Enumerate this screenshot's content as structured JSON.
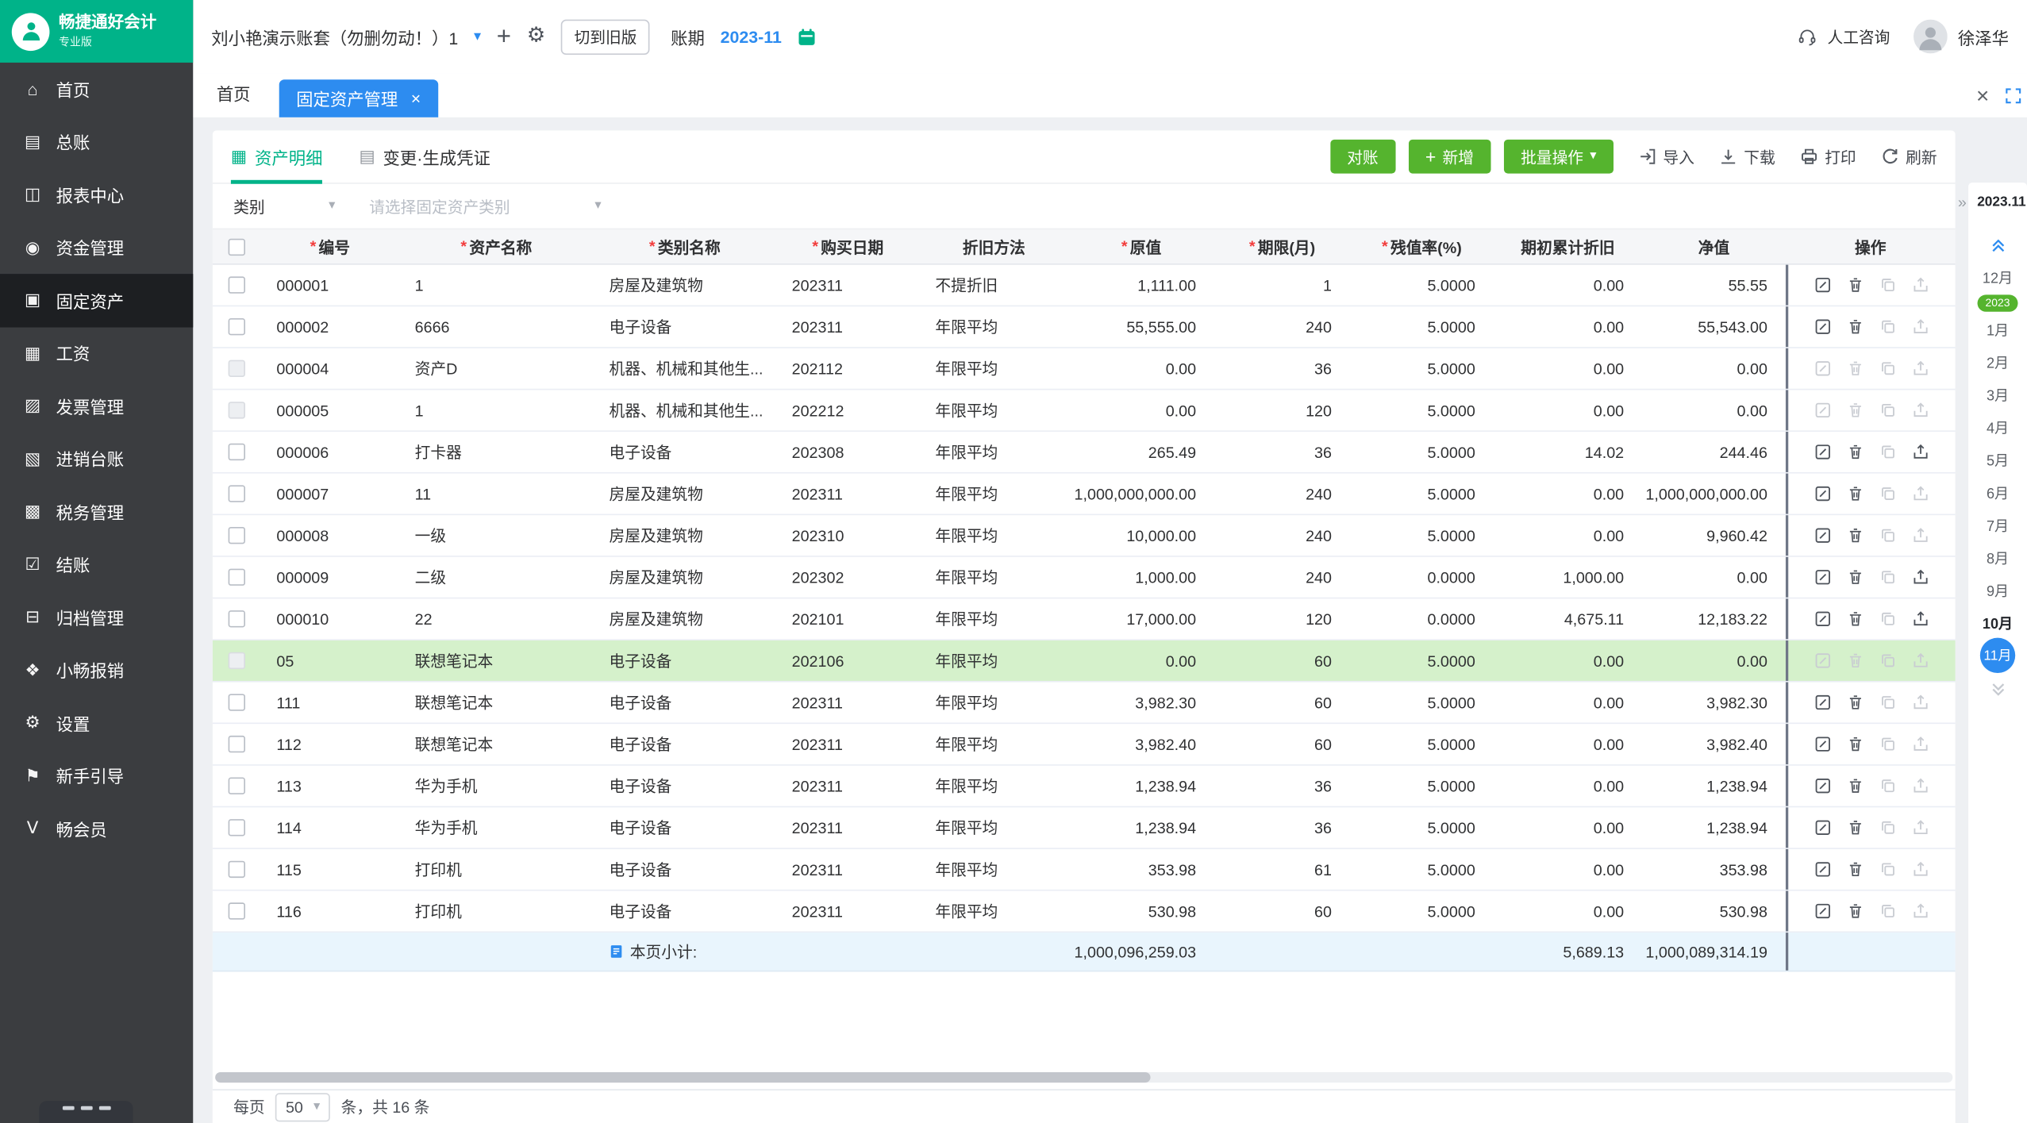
{
  "colors": {
    "brand": "#00b389",
    "action": "#55b42e",
    "blue": "#2d8cf0",
    "red": "#f23c3c",
    "sidebar_bg": "#3b3d40",
    "selected_row": "#d5f1cb",
    "summary_row": "#e9f5fd"
  },
  "sidebar": {
    "logo_title": "畅捷通好会计",
    "logo_subtitle": "专业版",
    "items": [
      {
        "key": "home",
        "label": "首页",
        "icon": "home-icon",
        "active": false
      },
      {
        "key": "general-ledger",
        "label": "总账",
        "icon": "ledger-icon",
        "active": false
      },
      {
        "key": "report-center",
        "label": "报表中心",
        "icon": "report-icon",
        "active": false
      },
      {
        "key": "fund-management",
        "label": "资金管理",
        "icon": "fund-icon",
        "active": false
      },
      {
        "key": "fixed-assets",
        "label": "固定资产",
        "icon": "fixed-asset-icon",
        "active": true
      },
      {
        "key": "salary",
        "label": "工资",
        "icon": "salary-icon",
        "active": false
      },
      {
        "key": "invoice-management",
        "label": "发票管理",
        "icon": "invoice-icon",
        "active": false
      },
      {
        "key": "purchase-sales-ledger",
        "label": "进销台账",
        "icon": "purchase-sales-icon",
        "active": false
      },
      {
        "key": "tax-management",
        "label": "税务管理",
        "icon": "tax-icon",
        "active": false
      },
      {
        "key": "closing",
        "label": "结账",
        "icon": "closing-icon",
        "active": false
      },
      {
        "key": "archive-management",
        "label": "归档管理",
        "icon": "archive-icon",
        "active": false
      },
      {
        "key": "reimbursement",
        "label": "小畅报销",
        "icon": "reimburse-icon",
        "active": false
      },
      {
        "key": "settings",
        "label": "设置",
        "icon": "settings-icon",
        "active": false
      },
      {
        "key": "beginner-guide",
        "label": "新手引导",
        "icon": "guide-icon",
        "active": false
      },
      {
        "key": "membership",
        "label": "畅会员",
        "icon": "member-icon",
        "active": false
      }
    ]
  },
  "topbar": {
    "account_name": "刘小艳演示账套（勿删勿动！）1",
    "switch_old_label": "切到旧版",
    "period_label": "账期",
    "period_value": "2023-11",
    "consult_label": "人工咨询",
    "username": "徐泽华"
  },
  "tabbar": {
    "tabs": [
      {
        "label": "首页",
        "active": false,
        "closable": false
      },
      {
        "label": "固定资产管理",
        "active": true,
        "closable": true
      }
    ]
  },
  "toolbar": {
    "view_tabs": [
      {
        "label": "资产明细",
        "active": true
      },
      {
        "label": "变更·生成凭证",
        "active": false
      }
    ],
    "reconcile_label": "对账",
    "add_label": "新增",
    "batch_label": "批量操作",
    "import_label": "导入",
    "download_label": "下载",
    "print_label": "打印",
    "refresh_label": "刷新"
  },
  "filterbar": {
    "category_label": "类别",
    "category_placeholder": "请选择固定资产类别"
  },
  "table": {
    "columns": [
      {
        "key": "code",
        "label": "编号",
        "required": true,
        "align": "left",
        "field": "code"
      },
      {
        "key": "name",
        "label": "资产名称",
        "required": true,
        "align": "left",
        "field": "name"
      },
      {
        "key": "category",
        "label": "类别名称",
        "required": true,
        "align": "left",
        "field": "category"
      },
      {
        "key": "purchase-date",
        "label": "购买日期",
        "required": true,
        "align": "left",
        "field": "purchase_date"
      },
      {
        "key": "method",
        "label": "折旧方法",
        "required": false,
        "align": "left",
        "field": "method"
      },
      {
        "key": "original-value",
        "label": "原值",
        "required": true,
        "align": "right",
        "field": "original_value"
      },
      {
        "key": "period-months",
        "label": "期限(月)",
        "required": true,
        "align": "right",
        "field": "period_months"
      },
      {
        "key": "residual-rate",
        "label": "残值率(%)",
        "required": true,
        "align": "right",
        "field": "residual_rate"
      },
      {
        "key": "initial-depreciation",
        "label": "期初累计折旧",
        "required": false,
        "align": "right",
        "field": "initial_depreciation"
      },
      {
        "key": "net-value",
        "label": "净值",
        "required": false,
        "align": "right",
        "field": "net_value"
      },
      {
        "key": "actions",
        "label": "操作",
        "required": false,
        "align": "center",
        "field": null
      }
    ],
    "rows": [
      {
        "code": "000001",
        "name": "1",
        "category": "房屋及建筑物",
        "purchase_date": "202311",
        "method": "不提折旧",
        "original_value": "1,111.00",
        "period_months": "1",
        "residual_rate": "5.0000",
        "initial_depreciation": "0.00",
        "net_value": "55.55",
        "state": "normal",
        "export_enabled": false
      },
      {
        "code": "000002",
        "name": "6666",
        "category": "电子设备",
        "purchase_date": "202311",
        "method": "年限平均",
        "original_value": "55,555.00",
        "period_months": "240",
        "residual_rate": "5.0000",
        "initial_depreciation": "0.00",
        "net_value": "55,543.00",
        "state": "normal",
        "export_enabled": false
      },
      {
        "code": "000004",
        "name": "资产D",
        "category": "机器、机械和其他生...",
        "purchase_date": "202112",
        "method": "年限平均",
        "original_value": "0.00",
        "period_months": "36",
        "residual_rate": "5.0000",
        "initial_depreciation": "0.00",
        "net_value": "0.00",
        "state": "disabled",
        "export_enabled": false
      },
      {
        "code": "000005",
        "name": "1",
        "category": "机器、机械和其他生...",
        "purchase_date": "202212",
        "method": "年限平均",
        "original_value": "0.00",
        "period_months": "120",
        "residual_rate": "5.0000",
        "initial_depreciation": "0.00",
        "net_value": "0.00",
        "state": "disabled",
        "export_enabled": false
      },
      {
        "code": "000006",
        "name": "打卡器",
        "category": "电子设备",
        "purchase_date": "202308",
        "method": "年限平均",
        "original_value": "265.49",
        "period_months": "36",
        "residual_rate": "5.0000",
        "initial_depreciation": "14.02",
        "net_value": "244.46",
        "state": "normal",
        "export_enabled": true
      },
      {
        "code": "000007",
        "name": "11",
        "category": "房屋及建筑物",
        "purchase_date": "202311",
        "method": "年限平均",
        "original_value": "1,000,000,000.00",
        "period_months": "240",
        "residual_rate": "5.0000",
        "initial_depreciation": "0.00",
        "net_value": "1,000,000,000.00",
        "state": "normal",
        "export_enabled": false
      },
      {
        "code": "000008",
        "name": "一级",
        "category": "房屋及建筑物",
        "purchase_date": "202310",
        "method": "年限平均",
        "original_value": "10,000.00",
        "period_months": "240",
        "residual_rate": "5.0000",
        "initial_depreciation": "0.00",
        "net_value": "9,960.42",
        "state": "normal",
        "export_enabled": false
      },
      {
        "code": "000009",
        "name": "二级",
        "category": "房屋及建筑物",
        "purchase_date": "202302",
        "method": "年限平均",
        "original_value": "1,000.00",
        "period_months": "240",
        "residual_rate": "0.0000",
        "initial_depreciation": "1,000.00",
        "net_value": "0.00",
        "state": "normal",
        "export_enabled": true
      },
      {
        "code": "000010",
        "name": "22",
        "category": "房屋及建筑物",
        "purchase_date": "202101",
        "method": "年限平均",
        "original_value": "17,000.00",
        "period_months": "120",
        "residual_rate": "0.0000",
        "initial_depreciation": "4,675.11",
        "net_value": "12,183.22",
        "state": "normal",
        "export_enabled": true
      },
      {
        "code": "05",
        "name": "联想笔记本",
        "category": "电子设备",
        "purchase_date": "202106",
        "method": "年限平均",
        "original_value": "0.00",
        "period_months": "60",
        "residual_rate": "5.0000",
        "initial_depreciation": "0.00",
        "net_value": "0.00",
        "state": "selected",
        "export_enabled": false
      },
      {
        "code": "111",
        "name": "联想笔记本",
        "category": "电子设备",
        "purchase_date": "202311",
        "method": "年限平均",
        "original_value": "3,982.30",
        "period_months": "60",
        "residual_rate": "5.0000",
        "initial_depreciation": "0.00",
        "net_value": "3,982.30",
        "state": "normal",
        "export_enabled": false
      },
      {
        "code": "112",
        "name": "联想笔记本",
        "category": "电子设备",
        "purchase_date": "202311",
        "method": "年限平均",
        "original_value": "3,982.40",
        "period_months": "60",
        "residual_rate": "5.0000",
        "initial_depreciation": "0.00",
        "net_value": "3,982.40",
        "state": "normal",
        "export_enabled": false
      },
      {
        "code": "113",
        "name": "华为手机",
        "category": "电子设备",
        "purchase_date": "202311",
        "method": "年限平均",
        "original_value": "1,238.94",
        "period_months": "36",
        "residual_rate": "5.0000",
        "initial_depreciation": "0.00",
        "net_value": "1,238.94",
        "state": "normal",
        "export_enabled": false
      },
      {
        "code": "114",
        "name": "华为手机",
        "category": "电子设备",
        "purchase_date": "202311",
        "method": "年限平均",
        "original_value": "1,238.94",
        "period_months": "36",
        "residual_rate": "5.0000",
        "initial_depreciation": "0.00",
        "net_value": "1,238.94",
        "state": "normal",
        "export_enabled": false
      },
      {
        "code": "115",
        "name": "打印机",
        "category": "电子设备",
        "purchase_date": "202311",
        "method": "年限平均",
        "original_value": "353.98",
        "period_months": "61",
        "residual_rate": "5.0000",
        "initial_depreciation": "0.00",
        "net_value": "353.98",
        "state": "normal",
        "export_enabled": false
      },
      {
        "code": "116",
        "name": "打印机",
        "category": "电子设备",
        "purchase_date": "202311",
        "method": "年限平均",
        "original_value": "530.98",
        "period_months": "60",
        "residual_rate": "5.0000",
        "initial_depreciation": "0.00",
        "net_value": "530.98",
        "state": "normal",
        "export_enabled": false
      }
    ],
    "summary": {
      "label": "本页小计:",
      "original_value": "1,000,096,259.03",
      "initial_depreciation": "5,689.13",
      "net_value": "1,000,089,314.19"
    }
  },
  "pagination": {
    "per_page_label": "每页",
    "per_page_value": "50",
    "suffix": "条，共 16 条"
  },
  "calendar": {
    "current": "2023.11",
    "collapse_icon": "»",
    "items": [
      {
        "label": "12月"
      },
      {
        "label": "2023",
        "type": "year"
      },
      {
        "label": "1月"
      },
      {
        "label": "2月"
      },
      {
        "label": "3月"
      },
      {
        "label": "4月"
      },
      {
        "label": "5月"
      },
      {
        "label": "6月"
      },
      {
        "label": "7月"
      },
      {
        "label": "8月"
      },
      {
        "label": "9月"
      },
      {
        "label": "10月",
        "emphasis": true
      },
      {
        "label": "11月",
        "selected": true
      }
    ]
  }
}
